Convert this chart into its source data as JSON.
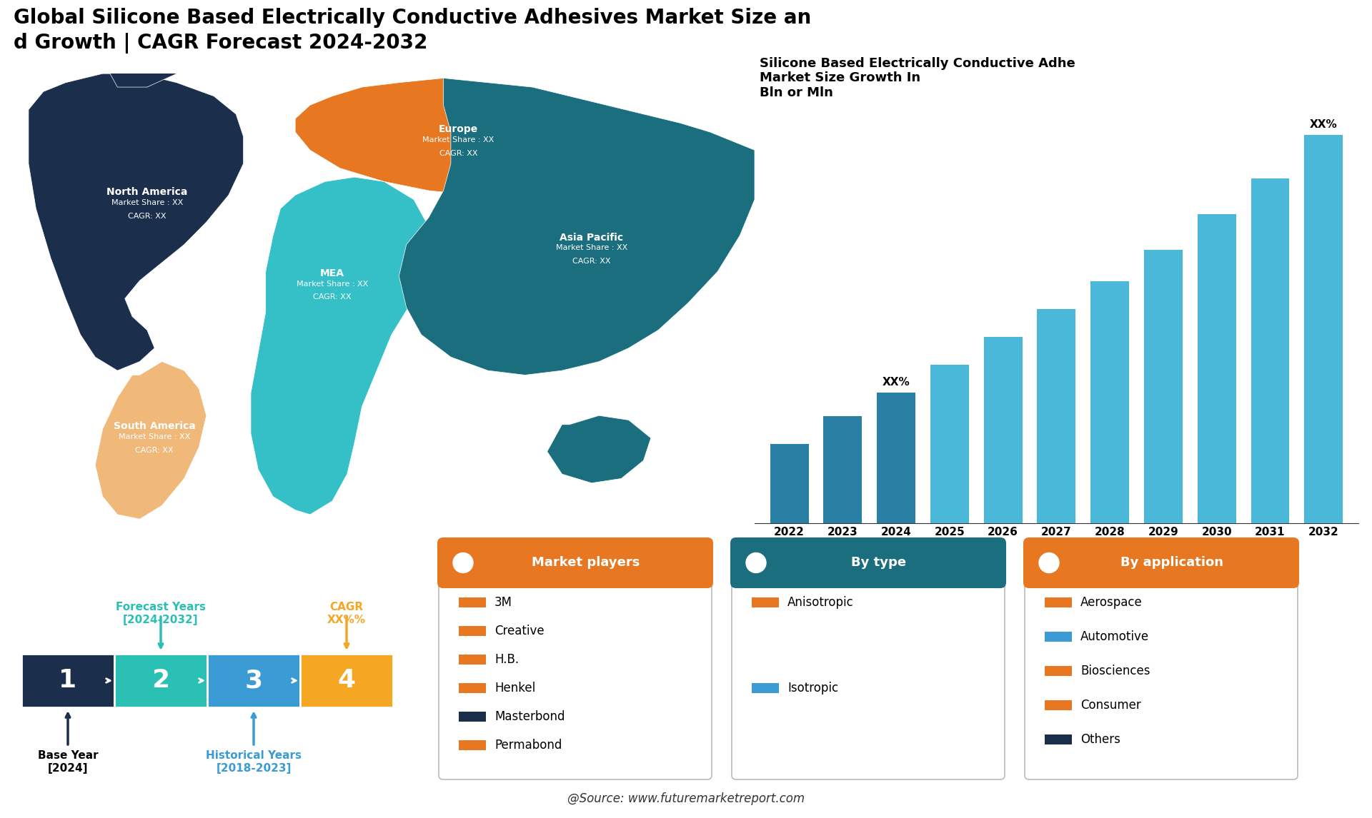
{
  "title_line1": "Global Silicone Based Electrically Conductive Adhesives Market Size an",
  "title_line2": "d Growth | CAGR Forecast 2024-2032",
  "title_fontsize": 20,
  "background_color": "#ffffff",
  "bar_chart_title": "Silicone Based Electrically Conductive Adhe\nMarket Size Growth In\nBln or Mln",
  "bar_years": [
    "2022",
    "2023",
    "2024",
    "2025",
    "2026",
    "2027",
    "2028",
    "2029",
    "2030",
    "2031",
    "2032"
  ],
  "bar_values": [
    1.0,
    1.35,
    1.65,
    2.0,
    2.35,
    2.7,
    3.05,
    3.45,
    3.9,
    4.35,
    4.9
  ],
  "bar_colors": [
    "#2a7fa5",
    "#2a7fa5",
    "#2a7fa5",
    "#4ab8d8",
    "#4ab8d8",
    "#4ab8d8",
    "#4ab8d8",
    "#4ab8d8",
    "#4ab8d8",
    "#4ab8d8",
    "#4ab8d8"
  ],
  "xx_label_2024": "XX%",
  "xx_label_2032": "XX%",
  "na_color": "#1b2e4b",
  "eu_color": "#e87722",
  "ap_color": "#1a6e7e",
  "mea_color": "#35c0c8",
  "sa_color": "#f0b97a",
  "seg1_color": "#1b2e4b",
  "seg2_color": "#2bc0b4",
  "seg3_color": "#3b9bd4",
  "seg4_color": "#f5a623",
  "market_players": [
    "3M",
    "Creative",
    "H.B.",
    "Henkel",
    "Masterbond",
    "Permabond"
  ],
  "mp_dot_colors": [
    "#e87722",
    "#e87722",
    "#e87722",
    "#e87722",
    "#1b2e4b",
    "#e87722"
  ],
  "by_type": [
    "Anisotropic",
    "Isotropic"
  ],
  "bt_dot_colors": [
    "#e87722",
    "#3b9bd4"
  ],
  "by_application": [
    "Aerospace",
    "Automotive",
    "Biosciences",
    "Consumer",
    "Others"
  ],
  "ba_dot_colors": [
    "#e87722",
    "#3b9bd4",
    "#e87722",
    "#e87722",
    "#1b2e4b"
  ],
  "orange_color": "#e87722",
  "teal_color": "#1a6e7e",
  "source_text": "@Source: www.futuremarketreport.com"
}
